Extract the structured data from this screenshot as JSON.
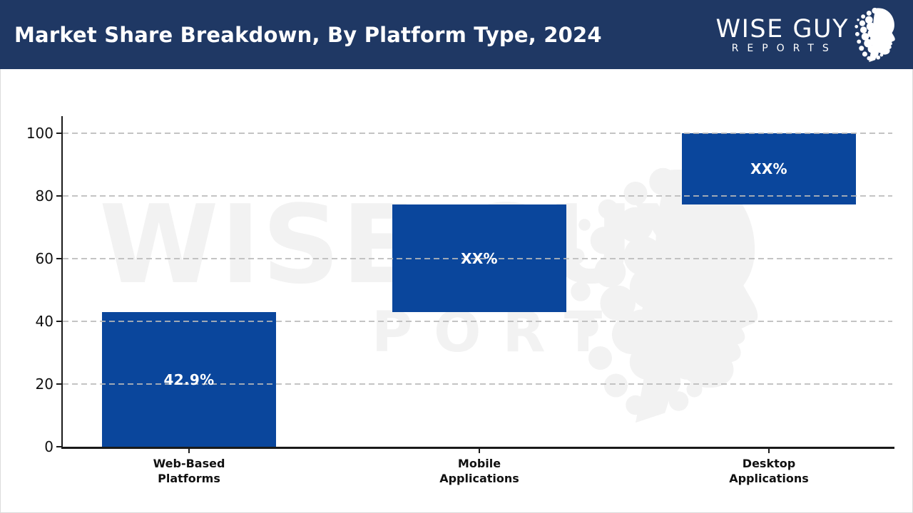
{
  "header": {
    "title": "Market Share Breakdown, By Platform Type, 2024",
    "logo": {
      "wordmark": "WISE GUY",
      "subtext": "REPORTS"
    }
  },
  "watermark": {
    "wordmark": "WISE GUY",
    "subtext": "PORTS"
  },
  "chart_data": {
    "type": "bar",
    "subtype": "waterfall",
    "title": "Market Share Breakdown, By Platform Type, 2024",
    "categories": [
      "Web-Based\nPlatforms",
      "Mobile\nApplications",
      "Desktop\nApplications"
    ],
    "bars": [
      {
        "category": "Web-Based Platforms",
        "start": 0,
        "end": 42.9,
        "label": "42.9%"
      },
      {
        "category": "Mobile Applications",
        "start": 42.9,
        "end": 77.3,
        "label": "XX%"
      },
      {
        "category": "Desktop Applications",
        "start": 77.3,
        "end": 100,
        "label": "XX%"
      }
    ],
    "xlabel": "",
    "ylabel": "",
    "ylim": [
      0,
      100
    ],
    "yticks": [
      0,
      20,
      40,
      60,
      80,
      100
    ],
    "grid": "horizontal-dashed",
    "legend": false,
    "colors": {
      "bar": "#0a469c",
      "grid": "#d9d9d9",
      "axis": "#1a1a1a",
      "value_label": "#ffffff"
    }
  },
  "colors": {
    "header_bg": "#1f3864",
    "header_text": "#ffffff",
    "watermark": "#f2f2f2"
  }
}
